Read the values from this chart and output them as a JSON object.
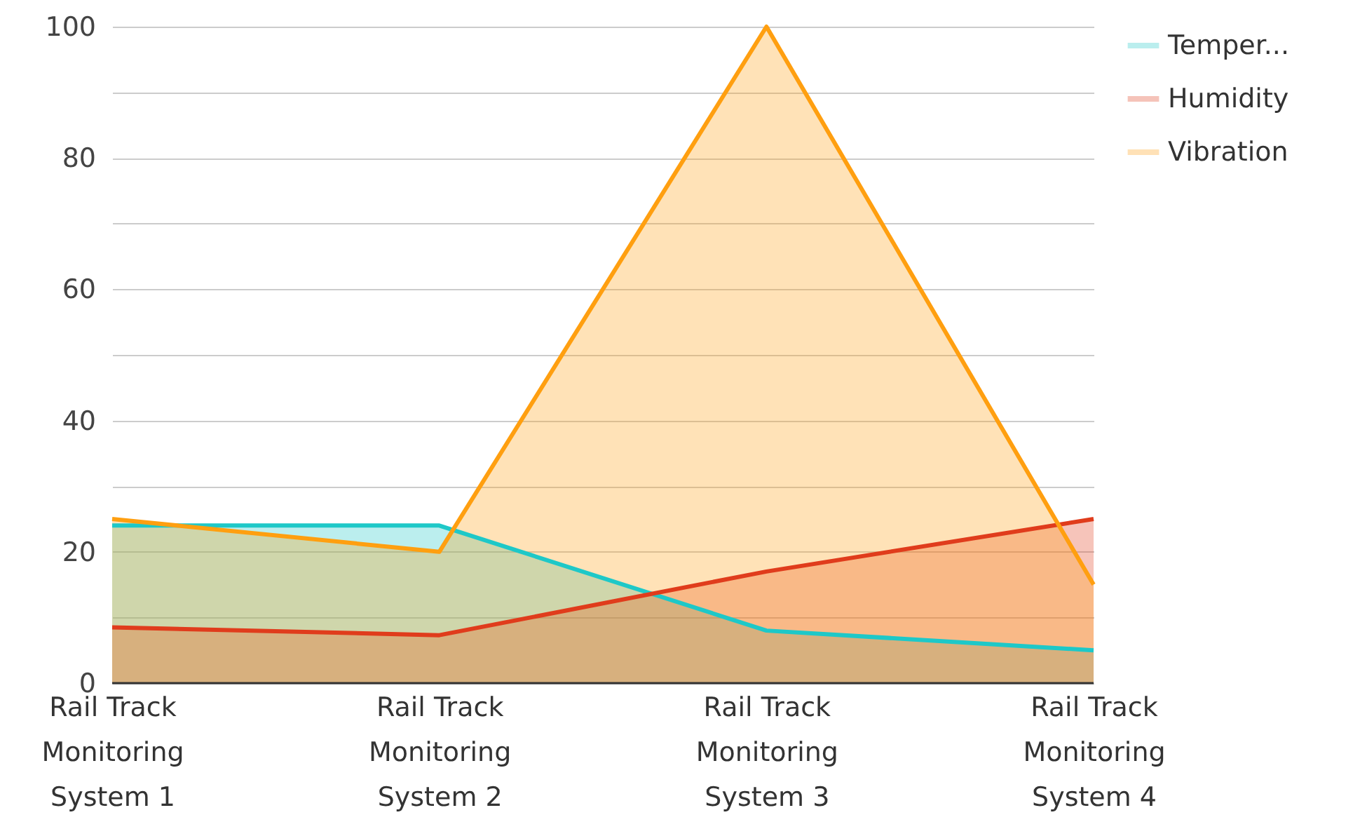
{
  "chart_data": {
    "type": "area",
    "categories": [
      "Rail Track Monitoring System 1",
      "Rail Track Monitoring System 2",
      "Rail Track Monitoring System 3",
      "Rail Track Monitoring System 4"
    ],
    "series": [
      {
        "name": "Temper...",
        "color": "#1ec8c8",
        "values": [
          24,
          24,
          8,
          5
        ]
      },
      {
        "name": "Humidity",
        "color": "#e03c1c",
        "values": [
          8.5,
          7.3,
          17,
          25
        ]
      },
      {
        "name": "Vibration",
        "color": "#ff9f10",
        "values": [
          25,
          20,
          100,
          15
        ]
      }
    ],
    "ylim": [
      0,
      100
    ],
    "yticks": [
      0,
      {
        "value": 10,
        "label": null
      },
      20,
      {
        "value": 30,
        "label": null
      },
      40,
      {
        "value": 50,
        "label": null
      },
      60,
      {
        "value": 70,
        "label": null
      },
      80,
      {
        "value": 90,
        "label": null
      },
      100
    ],
    "grid": "y",
    "legend": "top right"
  }
}
